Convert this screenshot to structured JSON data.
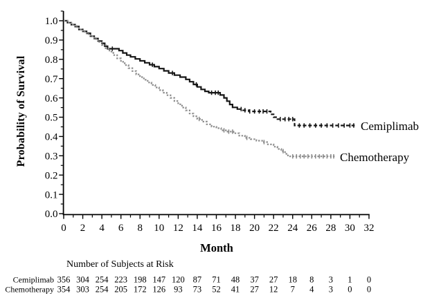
{
  "chart_data": {
    "type": "line",
    "subtype": "kaplan-meier-step",
    "title": "",
    "xlabel": "Month",
    "ylabel": "Probability of Survival",
    "xlim": [
      0,
      32
    ],
    "ylim": [
      0.0,
      1.05
    ],
    "grid": false,
    "xticks": [
      0,
      2,
      4,
      6,
      8,
      10,
      12,
      14,
      16,
      18,
      20,
      22,
      24,
      26,
      28,
      30,
      32
    ],
    "ytick_labels": [
      "0.0",
      "0.1",
      "0.2",
      "0.3",
      "0.4",
      "0.5",
      "0.6",
      "0.7",
      "0.8",
      "0.9",
      "1.0"
    ],
    "legend_position": "right-of-curve-ends",
    "series": [
      {
        "name": "Cemiplimab",
        "color": "#161616",
        "line_style": "solid-then-dashed",
        "dash_from_month": 18.3,
        "steps": [
          [
            0,
            1.0
          ],
          [
            0.4,
            0.99
          ],
          [
            0.8,
            0.98
          ],
          [
            1.2,
            0.97
          ],
          [
            1.6,
            0.955
          ],
          [
            2.0,
            0.945
          ],
          [
            2.4,
            0.935
          ],
          [
            2.8,
            0.92
          ],
          [
            3.2,
            0.908
          ],
          [
            3.6,
            0.895
          ],
          [
            4.0,
            0.883
          ],
          [
            4.3,
            0.868
          ],
          [
            4.6,
            0.855
          ],
          [
            5.8,
            0.845
          ],
          [
            6.2,
            0.833
          ],
          [
            6.6,
            0.822
          ],
          [
            7.0,
            0.813
          ],
          [
            7.5,
            0.802
          ],
          [
            8.0,
            0.792
          ],
          [
            8.5,
            0.782
          ],
          [
            9.0,
            0.772
          ],
          [
            9.5,
            0.762
          ],
          [
            10.0,
            0.752
          ],
          [
            10.5,
            0.74
          ],
          [
            11.0,
            0.729
          ],
          [
            11.6,
            0.718
          ],
          [
            12.2,
            0.708
          ],
          [
            12.8,
            0.696
          ],
          [
            13.2,
            0.684
          ],
          [
            13.6,
            0.67
          ],
          [
            14.0,
            0.657
          ],
          [
            14.4,
            0.644
          ],
          [
            14.8,
            0.634
          ],
          [
            15.2,
            0.627
          ],
          [
            16.4,
            0.615
          ],
          [
            16.8,
            0.6
          ],
          [
            17.1,
            0.583
          ],
          [
            17.4,
            0.566
          ],
          [
            17.7,
            0.551
          ],
          [
            18.2,
            0.542
          ],
          [
            18.8,
            0.536
          ],
          [
            19.4,
            0.53
          ],
          [
            21.7,
            0.515
          ],
          [
            22.0,
            0.5
          ],
          [
            22.4,
            0.49
          ],
          [
            24.2,
            0.457
          ],
          [
            30.5,
            0.457
          ]
        ],
        "censor_marks": [
          5.1,
          9.3,
          11.4,
          13.9,
          15.5,
          15.9,
          16.2,
          18.6,
          19.0,
          19.5,
          20.0,
          20.5,
          20.9,
          21.3,
          22.7,
          23.2,
          23.6,
          24.0,
          24.7,
          25.2,
          25.8,
          26.4,
          27.0,
          27.6,
          28.2,
          28.8,
          29.4,
          30.0,
          30.4
        ]
      },
      {
        "name": "Chemotherapy",
        "color": "#8d8d8d",
        "line_style": "dotted",
        "steps": [
          [
            0,
            1.0
          ],
          [
            0.4,
            0.99
          ],
          [
            0.8,
            0.979
          ],
          [
            1.2,
            0.967
          ],
          [
            1.6,
            0.955
          ],
          [
            2.0,
            0.943
          ],
          [
            2.4,
            0.931
          ],
          [
            2.8,
            0.919
          ],
          [
            3.2,
            0.905
          ],
          [
            3.6,
            0.89
          ],
          [
            4.0,
            0.874
          ],
          [
            4.4,
            0.857
          ],
          [
            4.8,
            0.84
          ],
          [
            5.2,
            0.822
          ],
          [
            5.6,
            0.805
          ],
          [
            6.0,
            0.787
          ],
          [
            6.4,
            0.77
          ],
          [
            6.8,
            0.754
          ],
          [
            7.2,
            0.739
          ],
          [
            7.6,
            0.722
          ],
          [
            8.0,
            0.708
          ],
          [
            8.4,
            0.694
          ],
          [
            8.8,
            0.68
          ],
          [
            9.2,
            0.667
          ],
          [
            9.6,
            0.654
          ],
          [
            10.0,
            0.64
          ],
          [
            10.4,
            0.627
          ],
          [
            10.8,
            0.614
          ],
          [
            11.2,
            0.6
          ],
          [
            11.6,
            0.584
          ],
          [
            12.0,
            0.567
          ],
          [
            12.4,
            0.55
          ],
          [
            12.8,
            0.535
          ],
          [
            13.2,
            0.519
          ],
          [
            13.6,
            0.505
          ],
          [
            14.0,
            0.491
          ],
          [
            14.5,
            0.477
          ],
          [
            15.0,
            0.463
          ],
          [
            15.5,
            0.451
          ],
          [
            16.0,
            0.443
          ],
          [
            16.5,
            0.432
          ],
          [
            17.0,
            0.425
          ],
          [
            17.8,
            0.417
          ],
          [
            18.4,
            0.404
          ],
          [
            19.0,
            0.393
          ],
          [
            19.6,
            0.386
          ],
          [
            20.2,
            0.378
          ],
          [
            20.8,
            0.371
          ],
          [
            21.4,
            0.359
          ],
          [
            22.0,
            0.347
          ],
          [
            22.4,
            0.335
          ],
          [
            22.8,
            0.324
          ],
          [
            23.2,
            0.31
          ],
          [
            23.5,
            0.297
          ],
          [
            28.4,
            0.297
          ]
        ],
        "censor_marks": [
          14.2,
          16.8,
          17.3,
          17.7,
          19.2,
          21.0,
          23.0,
          24.0,
          24.4,
          24.8,
          25.2,
          25.6,
          26.0,
          26.4,
          26.8,
          27.2,
          27.6,
          28.0,
          28.3
        ]
      }
    ],
    "risk_table": {
      "title": "Number of Subjects at Risk",
      "months": [
        0,
        2,
        4,
        6,
        8,
        10,
        12,
        14,
        16,
        18,
        20,
        22,
        24,
        26,
        28,
        30,
        32
      ],
      "rows": [
        {
          "label": "Cemiplimab",
          "values": [
            356,
            304,
            254,
            223,
            198,
            147,
            120,
            87,
            71,
            48,
            37,
            27,
            18,
            8,
            3,
            1,
            0
          ]
        },
        {
          "label": "Chemotherapy",
          "values": [
            354,
            303,
            254,
            205,
            172,
            126,
            93,
            73,
            52,
            41,
            27,
            12,
            7,
            4,
            3,
            0,
            0
          ]
        }
      ]
    }
  }
}
